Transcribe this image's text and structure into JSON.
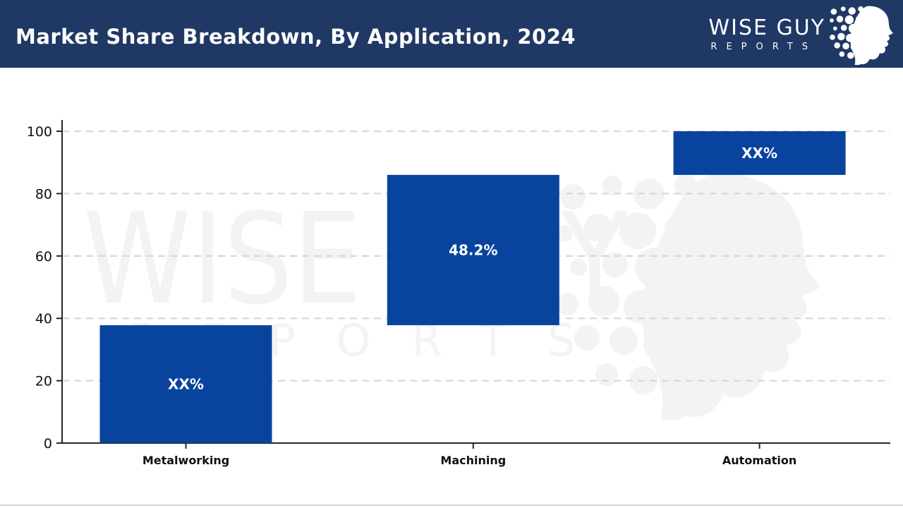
{
  "header": {
    "title": "Market Share Breakdown, By Application, 2024"
  },
  "logo": {
    "wordmark": "WISE GUY",
    "subtitle": "REPORTS"
  },
  "watermark": {
    "line1": "WISE GUY",
    "line2": "REPORTS"
  },
  "chart_data": {
    "type": "bar",
    "subtype": "floating-waterfall",
    "title": "Market Share Breakdown, By Application, 2024",
    "categories": [
      "Metalworking",
      "Machining",
      "Automation"
    ],
    "series": [
      {
        "name": "Market share (%)",
        "segments": [
          {
            "category": "Metalworking",
            "start": 0,
            "end": 37.8,
            "label": "XX%"
          },
          {
            "category": "Machining",
            "start": 37.8,
            "end": 86,
            "label": "48.2%"
          },
          {
            "category": "Automation",
            "start": 86,
            "end": 100,
            "label": "XX%"
          }
        ]
      }
    ],
    "xlabel": "",
    "ylabel": "",
    "ylim": [
      0,
      100
    ],
    "yticks": [
      0,
      20,
      40,
      60,
      80,
      100
    ],
    "grid": "horizontal-dashed",
    "legend": "none",
    "bar_color": "#08449d",
    "label_color": "#ffffff",
    "colors": {
      "header_bg": "#203864",
      "header_text": "#ffffff",
      "axis": "#262626",
      "gridline": "#d9d9d9",
      "watermark": "#f2f3f5"
    }
  }
}
